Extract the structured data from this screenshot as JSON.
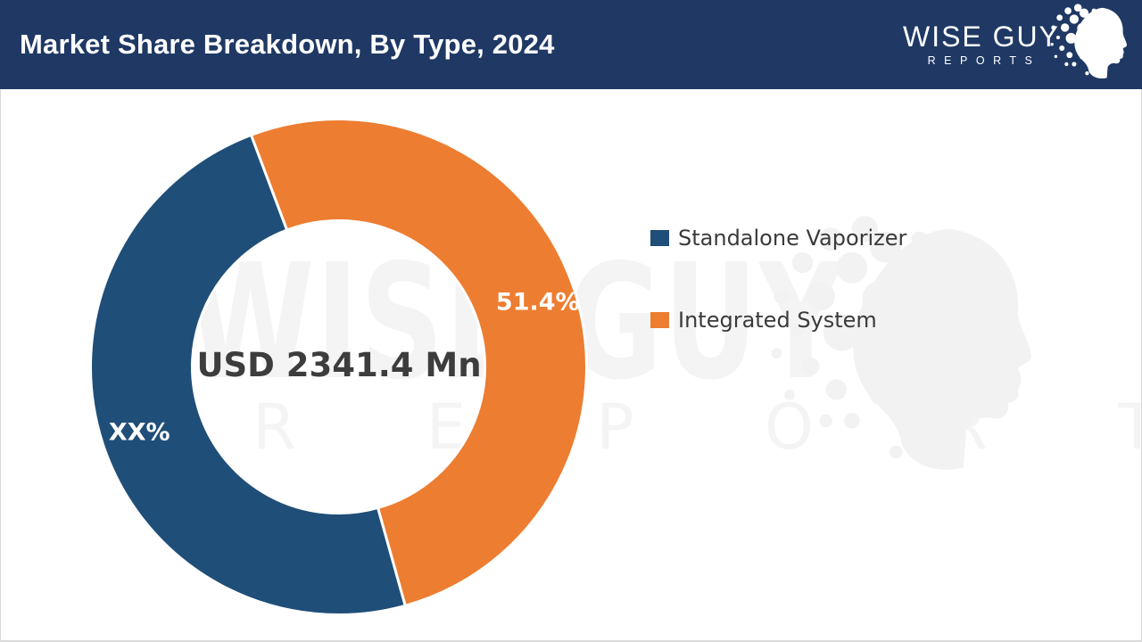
{
  "header": {
    "title": "Market Share Breakdown, By Type, 2024",
    "logo": {
      "brand": "WISE GUY",
      "sub": "REPORTS",
      "icon": "dotted-head-profile"
    }
  },
  "watermark": {
    "line1": "WISE GUY",
    "line2": "R E P O R T S"
  },
  "chart_data": {
    "type": "pie",
    "subtype": "donut",
    "title": "Market Share Breakdown, By Type, 2024",
    "center_label": "USD 2341.4 Mn",
    "units": "percent of market share",
    "series": [
      {
        "name": "Standalone Vaporizer",
        "value": 48.6,
        "display_label": "XX%",
        "color": "#1f4e78"
      },
      {
        "name": "Integrated System",
        "value": 51.4,
        "display_label": "51.4%",
        "color": "#ed7d31"
      }
    ],
    "legend_position": "right",
    "start_angle_clockwise_from_top_deg": 164.4,
    "inner_radius_ratio": 0.59,
    "label_radius_ratio": 0.845
  },
  "colors": {
    "header_bg": "#1f3864",
    "page_bg": "#ffffff",
    "border": "#d9d9d9",
    "watermark": "#f2f2f2",
    "text_dark": "#3a3a3a"
  }
}
